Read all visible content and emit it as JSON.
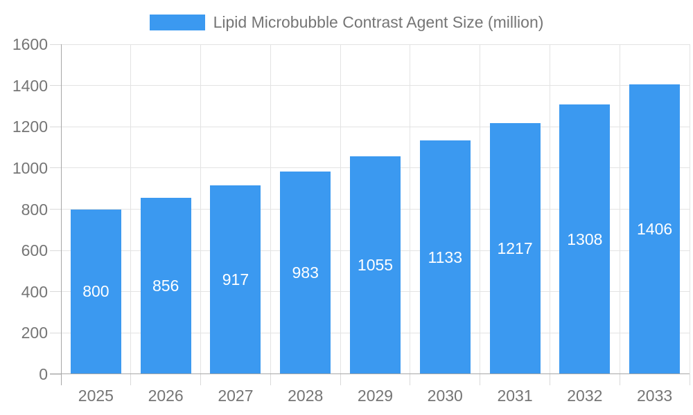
{
  "legend": {
    "swatch_color": "#3B99F0"
  },
  "chart_data": {
    "type": "bar",
    "title": "Lipid Microbubble Contrast Agent Size (million)",
    "legend": [
      "Lipid Microbubble Contrast Agent Size (million)"
    ],
    "legend_position": "top",
    "categories": [
      "2025",
      "2026",
      "2027",
      "2028",
      "2029",
      "2030",
      "2031",
      "2032",
      "2033"
    ],
    "values": [
      800,
      856,
      917,
      983,
      1055,
      1133,
      1217,
      1308,
      1406
    ],
    "value_labels": [
      "800",
      "856",
      "917",
      "983",
      "1055",
      "1133",
      "1217",
      "1308",
      "1406"
    ],
    "xlabel": "",
    "ylabel": "",
    "ylim": [
      0,
      1600
    ],
    "ytick_step": 200,
    "yticks": [
      "0",
      "200",
      "400",
      "600",
      "800",
      "1000",
      "1200",
      "1400",
      "1600"
    ],
    "grid": true,
    "colors": {
      "bar": "#3B99F0",
      "bar_value_text": "#FFFFFF",
      "axis_text": "#757575",
      "gridline": "#E3E3E3",
      "tick": "#D9D9D9",
      "axis_line": "#A6A6A6",
      "background": "#FFFFFF"
    }
  }
}
